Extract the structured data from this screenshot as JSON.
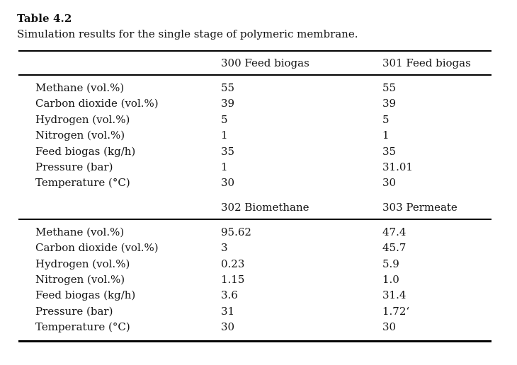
{
  "page": {
    "background": "#ffffff",
    "text_color": "#121212",
    "rule_color": "#000000"
  },
  "table": {
    "label": "Table 4.2",
    "caption": "Simulation results for the single stage of polymeric membrane.",
    "sections": [
      {
        "columns": [
          "",
          "300 Feed biogas",
          "301 Feed biogas"
        ],
        "rows": [
          {
            "label": "Methane (vol.%)",
            "values": [
              "55",
              "55"
            ]
          },
          {
            "label": "Carbon dioxide (vol.%)",
            "values": [
              "39",
              "39"
            ]
          },
          {
            "label": "Hydrogen (vol.%)",
            "values": [
              "5",
              "5"
            ]
          },
          {
            "label": "Nitrogen (vol.%)",
            "values": [
              "1",
              "1"
            ]
          },
          {
            "label": "Feed biogas (kg/h)",
            "values": [
              "35",
              "35"
            ]
          },
          {
            "label": "Pressure (bar)",
            "values": [
              "1",
              "31.01"
            ]
          },
          {
            "label": "Temperature (°C)",
            "values": [
              "30",
              "30"
            ]
          }
        ]
      },
      {
        "columns": [
          "",
          "302 Biomethane",
          "303 Permeate"
        ],
        "rows": [
          {
            "label": "Methane (vol.%)",
            "values": [
              "95.62",
              "47.4"
            ]
          },
          {
            "label": "Carbon dioxide (vol.%)",
            "values": [
              "3",
              "45.7"
            ]
          },
          {
            "label": "Hydrogen (vol.%)",
            "values": [
              "0.23",
              "5.9"
            ]
          },
          {
            "label": "Nitrogen (vol.%)",
            "values": [
              "1.15",
              "1.0"
            ]
          },
          {
            "label": "Feed biogas (kg/h)",
            "values": [
              "3.6",
              "31.4"
            ]
          },
          {
            "label": "Pressure (bar)",
            "values": [
              "31",
              "1.72‘"
            ]
          },
          {
            "label": "Temperature (°C)",
            "values": [
              "30",
              "30"
            ]
          }
        ]
      }
    ]
  }
}
